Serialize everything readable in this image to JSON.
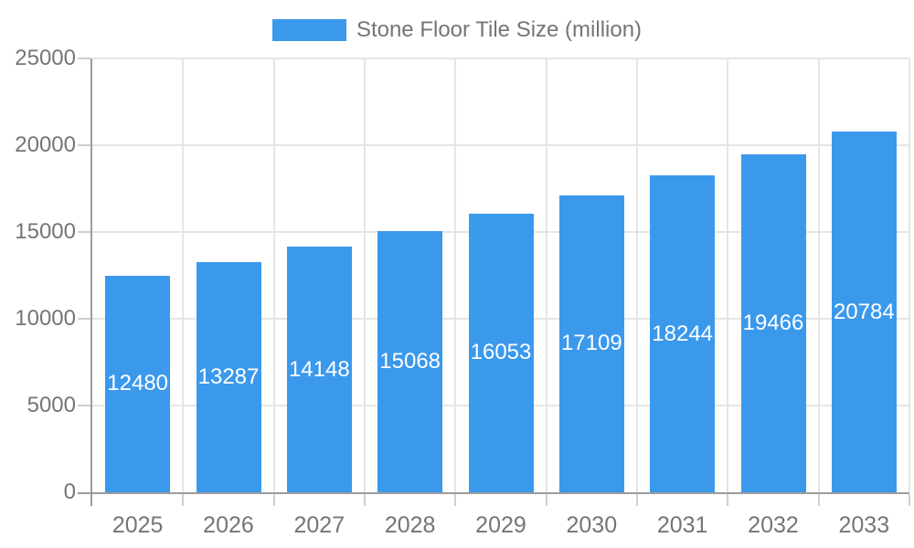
{
  "legend": {
    "label": "Stone Floor Tile Size (million)",
    "position": "top"
  },
  "colors": {
    "background": "#FFFFFF",
    "bar": "#3B99EC",
    "bar_label": "#FFFFFF",
    "axis_text": "#757575",
    "grid_line": "#E5E5E5",
    "axis_line": "#9C9C9C",
    "tick_mark": "#CFCFCF"
  },
  "chart_data": {
    "type": "bar",
    "title": "",
    "xlabel": "",
    "ylabel": "",
    "categories": [
      "2025",
      "2026",
      "2027",
      "2028",
      "2029",
      "2030",
      "2031",
      "2032",
      "2033"
    ],
    "series": [
      {
        "name": "Stone Floor Tile Size (million)",
        "values": [
          12480,
          13287,
          14148,
          15068,
          16053,
          17109,
          18244,
          19466,
          20784
        ]
      }
    ],
    "bar_value_labels": [
      "12480",
      "13287",
      "14148",
      "15068",
      "16053",
      "17109",
      "18244",
      "19466",
      "20784"
    ],
    "ylim": [
      0,
      25000
    ],
    "yticks": [
      0,
      5000,
      10000,
      15000,
      20000,
      25000
    ],
    "ytick_labels": [
      "0",
      "5000",
      "10000",
      "15000",
      "20000",
      "25000"
    ],
    "grid": true,
    "legend_position": "top"
  }
}
